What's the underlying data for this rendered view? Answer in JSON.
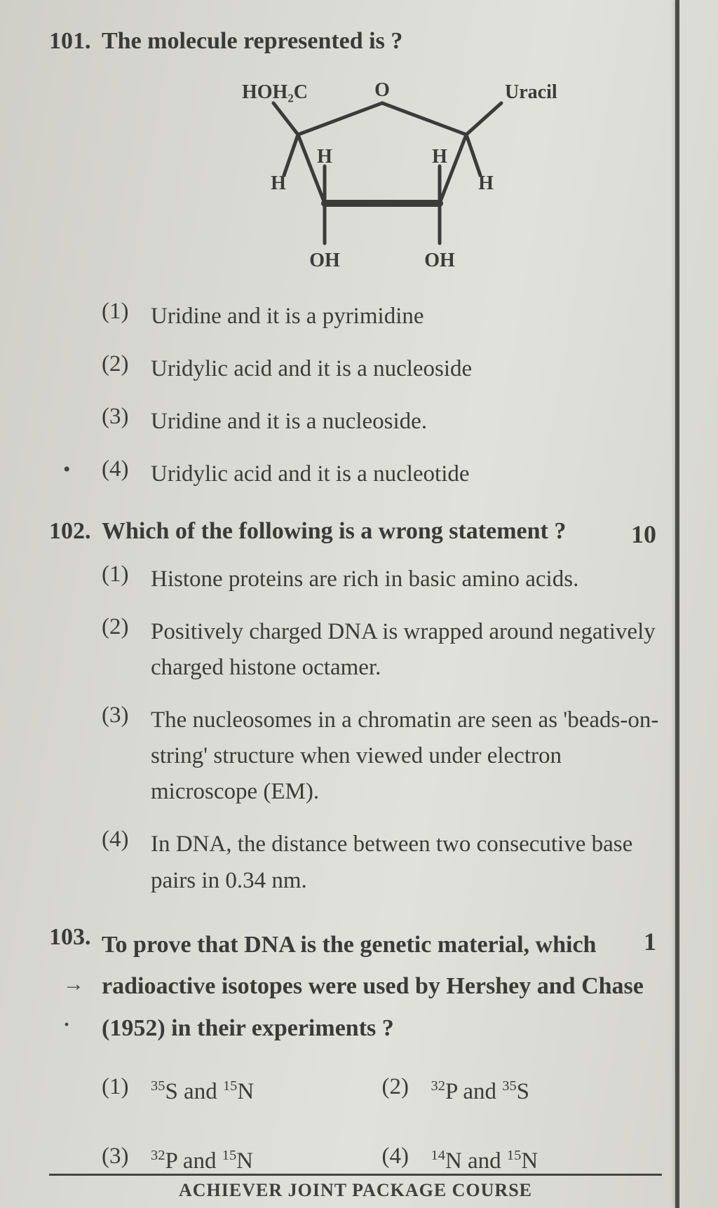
{
  "q101": {
    "num": "101.",
    "text": "The molecule represented is ?",
    "molecule": {
      "labels": {
        "top_o": "O",
        "tl": "HOH₂C",
        "tr": "Uracil",
        "mid_h1": "H",
        "mid_h2": "H",
        "mid_h3": "H",
        "mid_h4": "H",
        "bl": "OH",
        "br": "OH"
      },
      "stroke": "#3b3b39",
      "stroke_width": 5,
      "font_size": 28,
      "font_weight": "bold"
    },
    "options": [
      {
        "n": "(1)",
        "t": "Uridine and it is a pyrimidine"
      },
      {
        "n": "(2)",
        "t": "Uridylic acid and it is a nucleoside"
      },
      {
        "n": "(3)",
        "t": "Uridine and it is a nucleoside."
      },
      {
        "n": "(4)",
        "t": "Uridylic acid and it is a nucleotide"
      }
    ]
  },
  "q102": {
    "num": "102.",
    "text": "Which of the following is a wrong statement ?",
    "side_margin": "10",
    "options": [
      {
        "n": "(1)",
        "t": "Histone proteins are rich in basic amino acids."
      },
      {
        "n": "(2)",
        "t": "Positively charged DNA is wrapped around negatively charged histone octamer."
      },
      {
        "n": "(3)",
        "t": "The nucleosomes in a chromatin are seen as 'beads-on-string' structure when viewed under electron microscope (EM)."
      },
      {
        "n": "(4)",
        "t": "In DNA, the distance between two consecutive base pairs in 0.34 nm."
      }
    ]
  },
  "q103": {
    "num": "103.",
    "text": "To prove that DNA is the genetic material, which radioactive isotopes were used by Hershey and Chase (1952) in their experiments ?",
    "side_margin": "1",
    "options": [
      {
        "n": "(1)",
        "t": "<sup>35</sup>S and <sup>15</sup>N"
      },
      {
        "n": "(2)",
        "t": "<sup>32</sup>P and <sup>35</sup>S"
      },
      {
        "n": "(3)",
        "t": "<sup>32</sup>P and <sup>15</sup>N"
      },
      {
        "n": "(4)",
        "t": "<sup>14</sup>N and <sup>15</sup>N"
      }
    ]
  },
  "footer": "ACHIEVER JOINT PACKAGE COURSE",
  "colors": {
    "text": "#3a3a38",
    "page_bg": "#d9d9d3",
    "rule": "#4b4b48"
  }
}
